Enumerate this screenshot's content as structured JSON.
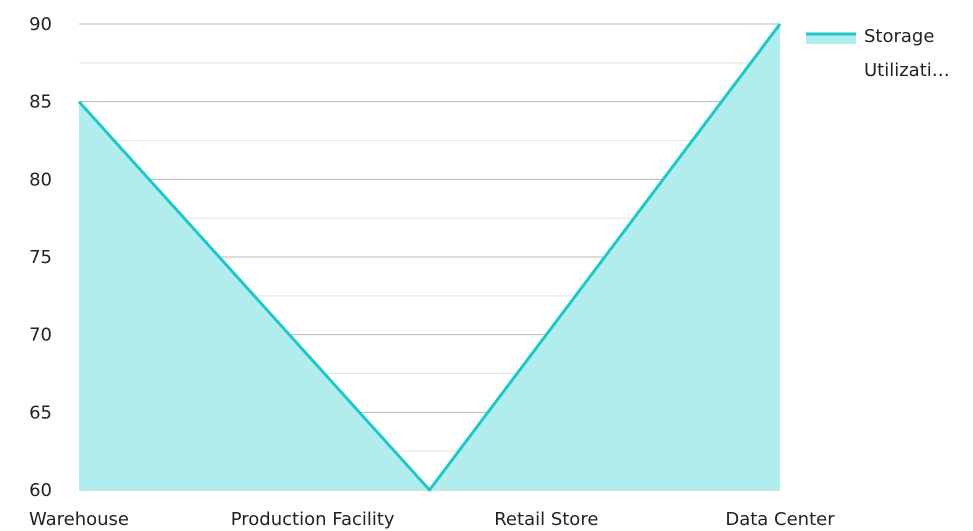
{
  "chart_data": {
    "type": "area",
    "categories": [
      "Warehouse",
      "Production Facility",
      "Retail Store",
      "Data Center"
    ],
    "series": [
      {
        "name": "Storage Utilizati…",
        "values": [
          85,
          72.5,
          60,
          90
        ]
      }
    ],
    "x_points": [
      0,
      0.5,
      1,
      2
    ],
    "ylim": [
      60,
      90
    ],
    "yticks": [
      60,
      65,
      70,
      75,
      80,
      85,
      90
    ],
    "ytick_labels": [
      "60",
      "65",
      "70",
      "75",
      "80",
      "85",
      "90"
    ],
    "grid": true,
    "legend": "top-right",
    "colors": {
      "line": "#1ec8c8",
      "fill": "#b2eded",
      "grid_major": "#b8b8b8",
      "grid_minor": "#e2e2e2"
    },
    "legend_label_lines": [
      "Storage",
      "Utilizati…"
    ]
  }
}
